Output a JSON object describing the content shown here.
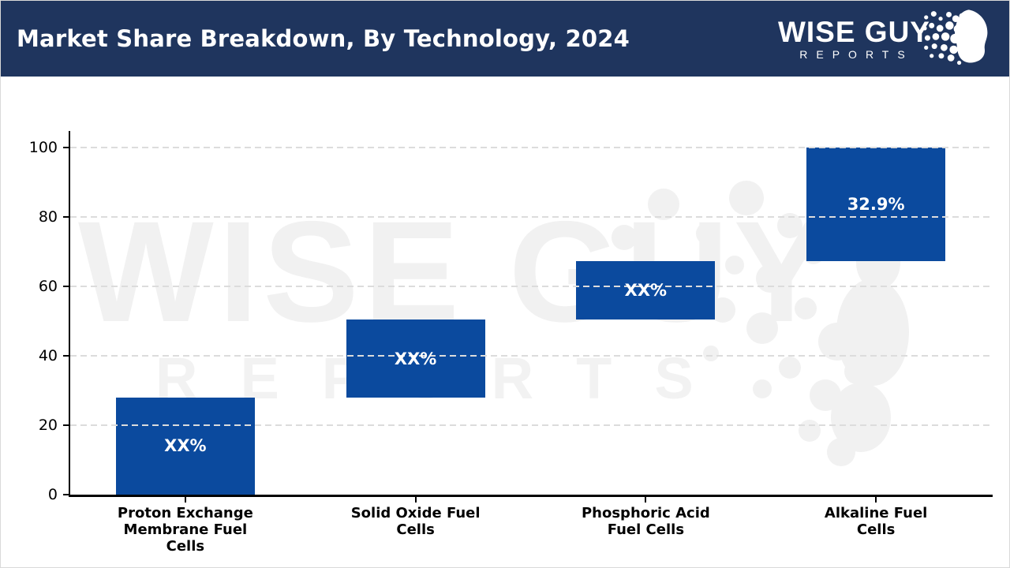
{
  "header": {
    "title": "Market Share Breakdown, By Technology, 2024",
    "bg_color": "#1F355E",
    "logo": {
      "line1": "WISE GUY",
      "line2": "REPORTS"
    }
  },
  "icons": {
    "logo_face": "dotted-head-profile-icon",
    "watermark_dots": "dotted-head-profile-watermark"
  },
  "watermark": {
    "line1": "WISE GUY",
    "line2": "REPORTS"
  },
  "chart_data": {
    "type": "bar",
    "variant": "floating-waterfall",
    "title": "Market Share Breakdown, By Technology, 2024",
    "xlabel": "",
    "ylabel": "",
    "ylim": [
      0,
      105
    ],
    "yticks": [
      0,
      20,
      40,
      60,
      80,
      100
    ],
    "grid": "horizontal-dashed",
    "bar_color": "#0B4A9E",
    "categories": [
      "Proton Exchange\nMembrane Fuel\nCells",
      "Solid Oxide Fuel\nCells",
      "Phosphoric Acid\nFuel Cells",
      "Alkaline Fuel\nCells"
    ],
    "bars": [
      {
        "category": "Proton Exchange\nMembrane Fuel\nCells",
        "start": 0,
        "end": 28,
        "label": "XX%"
      },
      {
        "category": "Solid Oxide Fuel\nCells",
        "start": 28,
        "end": 50.3,
        "label": "XX%"
      },
      {
        "category": "Phosphoric Acid\nFuel Cells",
        "start": 50.4,
        "end": 67.1,
        "label": "XX%"
      },
      {
        "category": "Alkaline Fuel\nCells",
        "start": 67.1,
        "end": 100,
        "label": "32.9%"
      }
    ]
  }
}
